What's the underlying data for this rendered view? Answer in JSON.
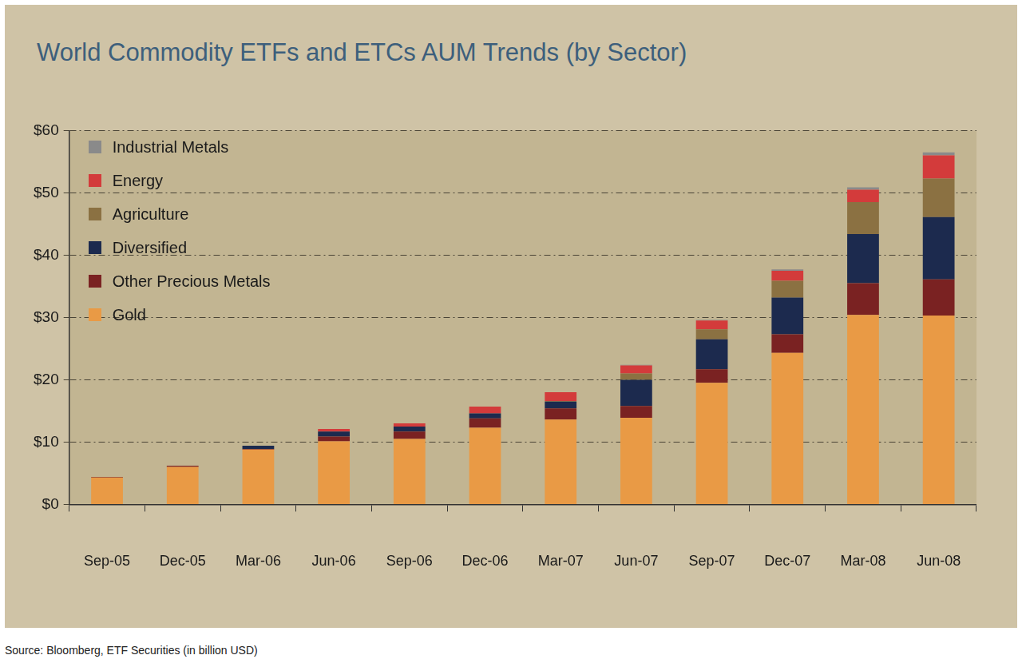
{
  "chart_data": {
    "type": "bar",
    "title": "World Commodity ETFs and ETCs AUM Trends (by Sector)",
    "source": "Source: Bloomberg, ETF Securities (in billion USD)",
    "categories": [
      "Sep-05",
      "Dec-05",
      "Mar-06",
      "Jun-06",
      "Sep-06",
      "Dec-06",
      "Mar-07",
      "Jun-07",
      "Sep-07",
      "Dec-07",
      "Mar-08",
      "Jun-08"
    ],
    "series": [
      {
        "name": "Gold",
        "color": "#e99a45",
        "values": [
          4.3,
          6.0,
          8.8,
          10.1,
          10.5,
          12.3,
          13.6,
          13.9,
          19.5,
          24.3,
          30.4,
          30.3
        ]
      },
      {
        "name": "Other Precious Metals",
        "color": "#7a2222",
        "values": [
          0.1,
          0.2,
          0.1,
          0.8,
          1.2,
          1.5,
          1.8,
          1.9,
          2.2,
          3.0,
          5.1,
          5.8
        ]
      },
      {
        "name": "Diversified",
        "color": "#1c2a4e",
        "values": [
          0,
          0,
          0.5,
          0.8,
          0.8,
          0.8,
          1.1,
          4.2,
          4.8,
          5.9,
          7.9,
          10.0
        ]
      },
      {
        "name": "Agriculture",
        "color": "#8b7142",
        "values": [
          0,
          0,
          0,
          0,
          0,
          0,
          0.1,
          1.0,
          1.6,
          2.7,
          5.1,
          6.2
        ]
      },
      {
        "name": "Energy",
        "color": "#d33b3b",
        "values": [
          0,
          0,
          0,
          0.4,
          0.5,
          1.1,
          1.4,
          1.3,
          1.4,
          1.6,
          2.0,
          3.7
        ]
      },
      {
        "name": "Industrial Metals",
        "color": "#8a8a8a",
        "values": [
          0,
          0,
          0,
          0,
          0,
          0,
          0,
          0.1,
          0.1,
          0.2,
          0.4,
          0.5
        ]
      }
    ],
    "stacked": true,
    "grid": true,
    "legend": "top-left",
    "ylim": [
      0,
      60
    ],
    "yticks": [
      {
        "value": 0,
        "label": "$0"
      },
      {
        "value": 10,
        "label": "$10"
      },
      {
        "value": 20,
        "label": "$20"
      },
      {
        "value": 30,
        "label": "$30"
      },
      {
        "value": 40,
        "label": "$40"
      },
      {
        "value": 50,
        "label": "$50"
      },
      {
        "value": 60,
        "label": "$60"
      }
    ]
  }
}
